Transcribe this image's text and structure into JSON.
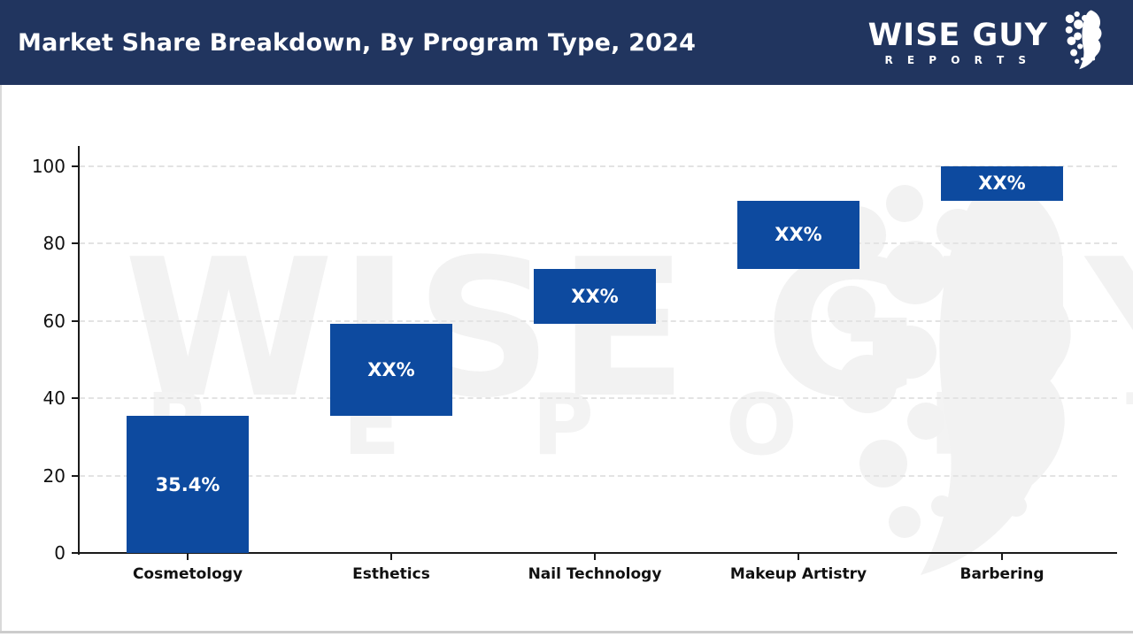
{
  "header": {
    "title": "Market Share Breakdown, By Program Type, 2024",
    "bg_color": "#21355f",
    "logo": {
      "wordmark": "WISE GUY",
      "subtext": "R E P O R T S"
    }
  },
  "watermark": {
    "line1": "WISE GUY",
    "line2": "R E P O R T S"
  },
  "chart_data": {
    "type": "bar",
    "subtype": "waterfall-breakdown-floating-bars",
    "title": "Market Share Breakdown, By Program Type, 2024",
    "categories": [
      "Cosmetology",
      "Esthetics",
      "Nail Technology",
      "Makeup Artistry",
      "Barbering"
    ],
    "segments": [
      {
        "category": "Cosmetology",
        "start": 0,
        "end": 35.4,
        "label": "35.4%"
      },
      {
        "category": "Esthetics",
        "start": 35.4,
        "end": 59.1,
        "label": "XX%"
      },
      {
        "category": "Nail Technology",
        "start": 59.1,
        "end": 73.4,
        "label": "XX%"
      },
      {
        "category": "Makeup Artistry",
        "start": 73.4,
        "end": 91.0,
        "label": "XX%"
      },
      {
        "category": "Barbering",
        "start": 91.0,
        "end": 100.0,
        "label": "XX%"
      }
    ],
    "values_masked_as": "XX%",
    "yticks": [
      0,
      20,
      40,
      60,
      80,
      100
    ],
    "ylim": [
      0,
      105
    ],
    "xlabel": "",
    "ylabel": "",
    "grid": "horizontal-dashed",
    "legend": "none",
    "bar_color": "#0d4a9f",
    "bar_label_color": "#ffffff",
    "axis_color": "#1a1a1a",
    "header_color": "#21355f"
  }
}
